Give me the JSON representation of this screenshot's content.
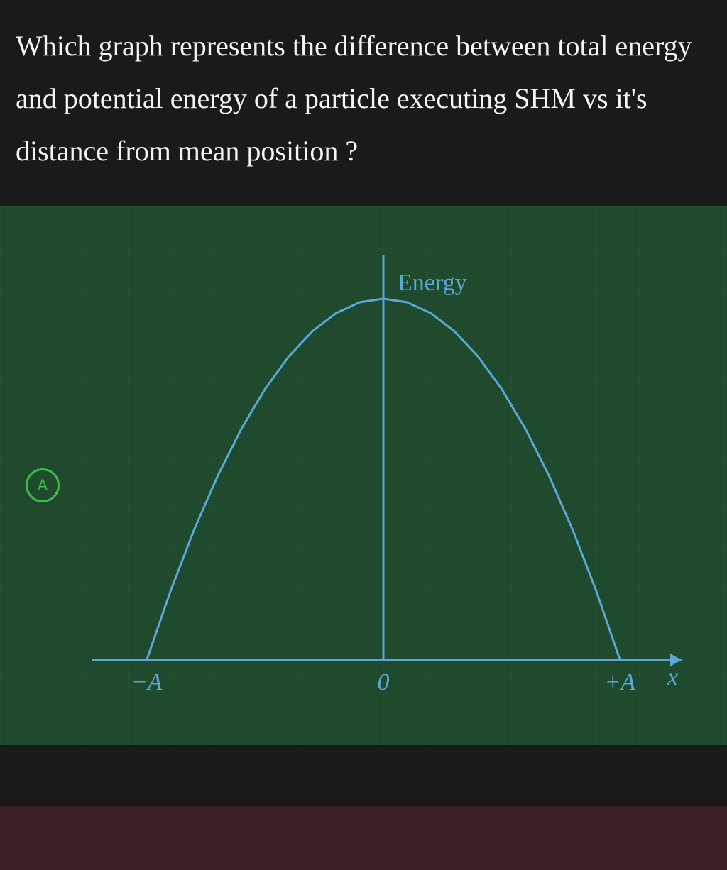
{
  "question": {
    "text": "Which graph represents the difference between total energy and potential energy of a particle executing SHM vs it's distance from mean position ?"
  },
  "option": {
    "letter": "A",
    "badge_border_color": "#3fb950",
    "badge_text_color": "#3fb950"
  },
  "chart": {
    "type": "line",
    "ylabel": "Energy",
    "xlabel": "x",
    "xticks": [
      {
        "pos": -1,
        "label": "−A"
      },
      {
        "pos": 0,
        "label": "0"
      },
      {
        "pos": 1,
        "label": "+A"
      }
    ],
    "xlim": [
      -1.2,
      1.2
    ],
    "ylim": [
      0,
      1.1
    ],
    "curve": {
      "description": "inverted parabola KE = E_max (1 - (x/A)^2)",
      "sample_points_x": [
        -1.0,
        -0.9,
        -0.8,
        -0.7,
        -0.6,
        -0.5,
        -0.4,
        -0.3,
        -0.2,
        -0.1,
        0.0,
        0.1,
        0.2,
        0.3,
        0.4,
        0.5,
        0.6,
        0.7,
        0.8,
        0.9,
        1.0
      ],
      "sample_points_y": [
        0.0,
        0.19,
        0.36,
        0.51,
        0.64,
        0.75,
        0.84,
        0.91,
        0.96,
        0.99,
        1.0,
        0.99,
        0.96,
        0.91,
        0.84,
        0.75,
        0.64,
        0.51,
        0.36,
        0.19,
        0.0
      ],
      "stroke_color": "#5aa8d6",
      "stroke_width": 3
    },
    "axis_color": "#5aa8d6",
    "axis_width": 3,
    "label_color": "#5aa8d6",
    "label_fontsize": 34,
    "tick_label_fontsize": 34,
    "background_color": "#1f4a2e"
  },
  "panel": {
    "bottom_band_color": "#3a1f24"
  }
}
